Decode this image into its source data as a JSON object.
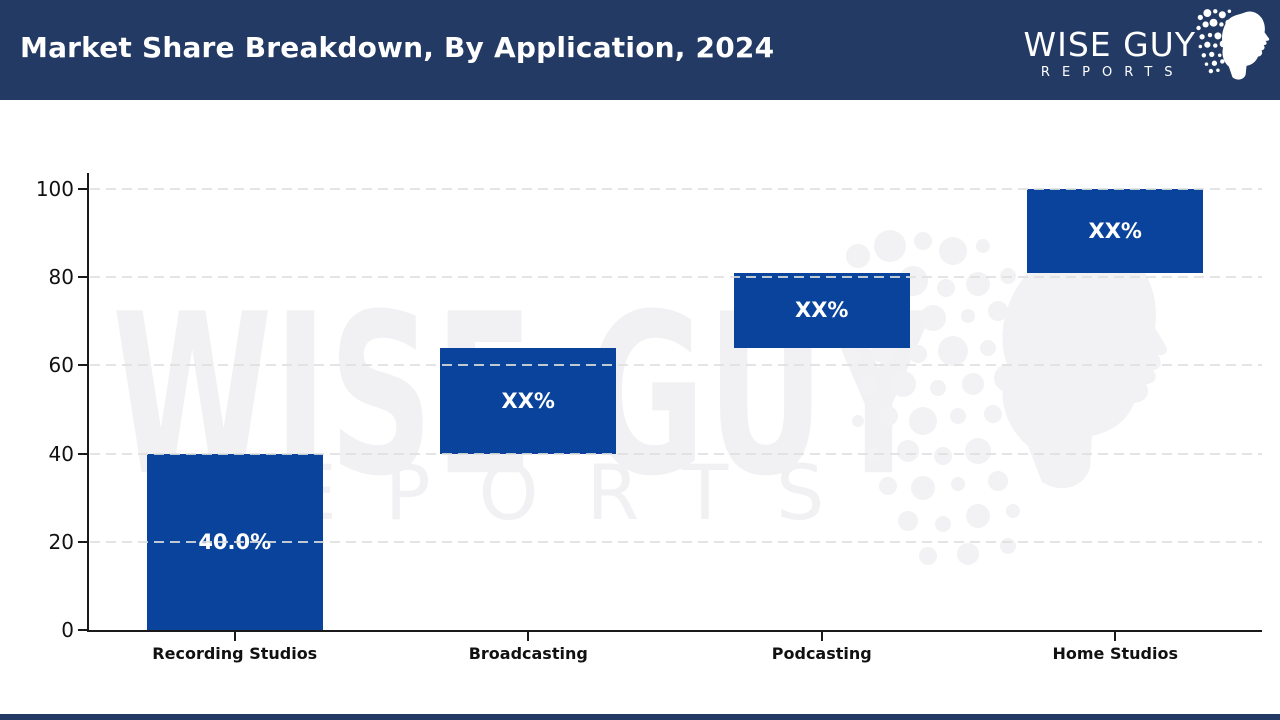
{
  "header": {
    "title": "Market Share Breakdown, By Application, 2024",
    "bg_color": "#223A64",
    "logo": {
      "line1": "WISE GUY",
      "line2": "REPORTS"
    }
  },
  "watermark": {
    "line1": "WISE GUY",
    "line2": "REPORTS"
  },
  "chart_data": {
    "type": "bar",
    "subtype": "waterfall-floating-bars",
    "title": "Market Share Breakdown, By Application, 2024",
    "categories": [
      "Recording Studios",
      "Broadcasting",
      "Podcasting",
      "Home Studios"
    ],
    "series": [
      {
        "name": "Market share (%)",
        "segments": [
          {
            "category": "Recording Studios",
            "start": 0,
            "end": 40,
            "label": "40.0%"
          },
          {
            "category": "Broadcasting",
            "start": 40,
            "end": 64,
            "label": "XX%"
          },
          {
            "category": "Podcasting",
            "start": 64,
            "end": 81,
            "label": "XX%"
          },
          {
            "category": "Home Studios",
            "start": 81,
            "end": 100,
            "label": "XX%"
          }
        ]
      }
    ],
    "xlabel": "",
    "ylabel": "",
    "ylim": [
      0,
      100
    ],
    "yticks": [
      0,
      20,
      40,
      60,
      80,
      100
    ],
    "grid": "horizontal-dashed-above-bars",
    "legend": "none",
    "bar_color": "#09439B",
    "bar_label_color": "#FFFFFF",
    "axis_color": "#1A1A1A",
    "gridline_color": "#DFDFDF"
  }
}
